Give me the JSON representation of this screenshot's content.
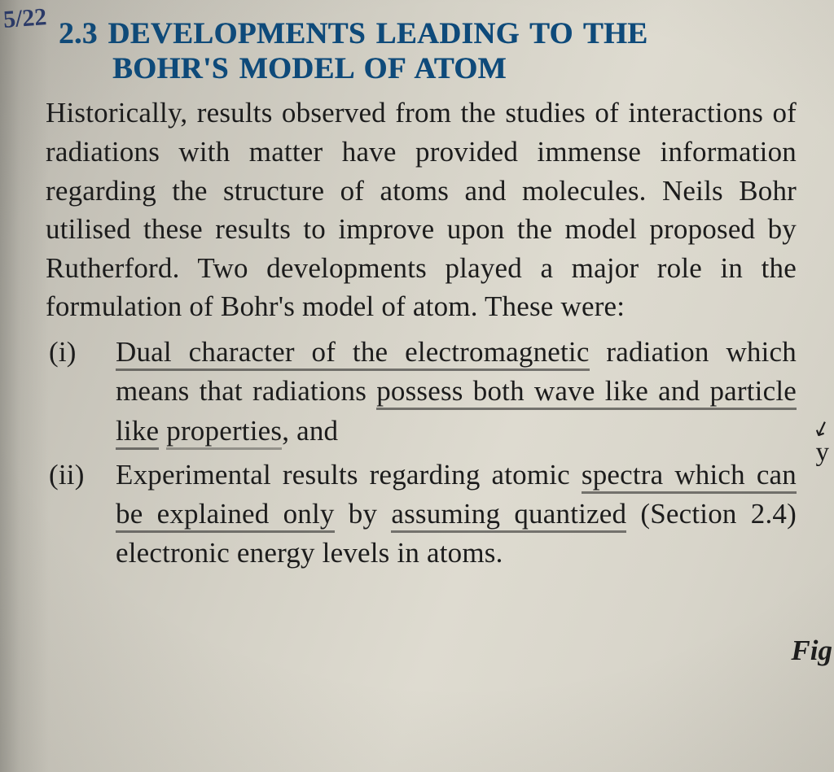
{
  "handwritten": {
    "mark": "5/22"
  },
  "heading": {
    "line1": "2.3 DEVELOPMENTS LEADING TO THE",
    "line2": "BOHR'S MODEL OF ATOM",
    "color": "#0e4a7a",
    "fontsize": 37,
    "weight": "900"
  },
  "paragraph": {
    "text": "Historically, results observed from the studies of interactions of radiations with matter have provided immense information regarding the structure of atoms and molecules. Neils Bohr utilised these results to improve upon the model proposed by Rutherford. Two developments played a major role in the formulation of Bohr's model of atom. These were:",
    "color": "#1c1c1c",
    "fontsize": 35
  },
  "list": {
    "items": [
      {
        "marker": "(i)",
        "segments": [
          {
            "t": "Dual character of the electromagnetic",
            "u": true
          },
          {
            "t": " radiation which means that radiations ",
            "u": false
          },
          {
            "t": "possess both wave like and particle like",
            "u": true
          },
          {
            "t": " ",
            "u": false
          },
          {
            "t": "properties",
            "u": true,
            "soft": true
          },
          {
            "t": ", and",
            "u": false
          }
        ]
      },
      {
        "marker": "(ii)",
        "segments": [
          {
            "t": "Experimental results regarding atomic ",
            "u": false
          },
          {
            "t": "spectra which can be explained only",
            "u": true
          },
          {
            "t": " by ",
            "u": false
          },
          {
            "t": "assuming quantized",
            "u": true
          },
          {
            "t": " (Section 2.4) electronic energy levels in atoms.",
            "u": false
          }
        ]
      }
    ]
  },
  "margin": {
    "y_label": "y",
    "fig_label": "Fig"
  },
  "styling": {
    "page_bg_gradient": [
      "#b8b5ac",
      "#c5c2b8",
      "#d4d1c6",
      "#dedbd0",
      "#d8d5ca",
      "#cecbc0"
    ],
    "underline_color": "rgba(30,30,30,0.55)",
    "underline_color_soft": "rgba(30,30,30,0.35)",
    "body_font": "Georgia, 'Times New Roman', serif",
    "handwritten_color": "#2a3a6a"
  }
}
